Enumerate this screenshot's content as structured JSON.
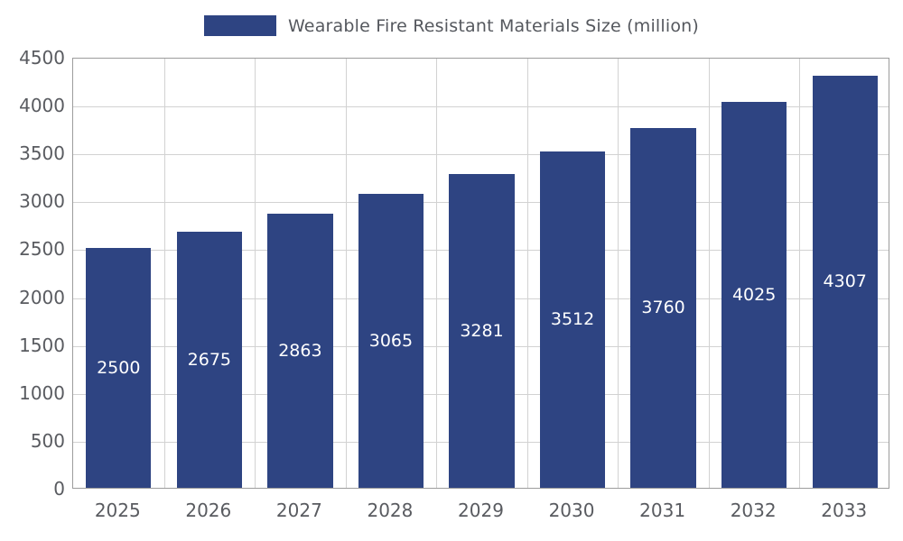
{
  "chart_data": {
    "type": "bar",
    "title": "Wearable Fire Resistant Materials Size (million)",
    "categories": [
      "2025",
      "2026",
      "2027",
      "2028",
      "2029",
      "2030",
      "2031",
      "2032",
      "2033"
    ],
    "values": [
      2500,
      2675,
      2863,
      3065,
      3281,
      3512,
      3760,
      4025,
      4307
    ],
    "xlabel": "",
    "ylabel": "",
    "ylim": [
      0,
      4500
    ],
    "ytick_step": 500,
    "grid": true,
    "legend_position": "top-center",
    "value_labels": "inside-center",
    "bar_color": "#2e4482",
    "value_label_color": "#ffffff",
    "axis_label_color": "#595b60",
    "grid_color": "#d2d2d2"
  }
}
